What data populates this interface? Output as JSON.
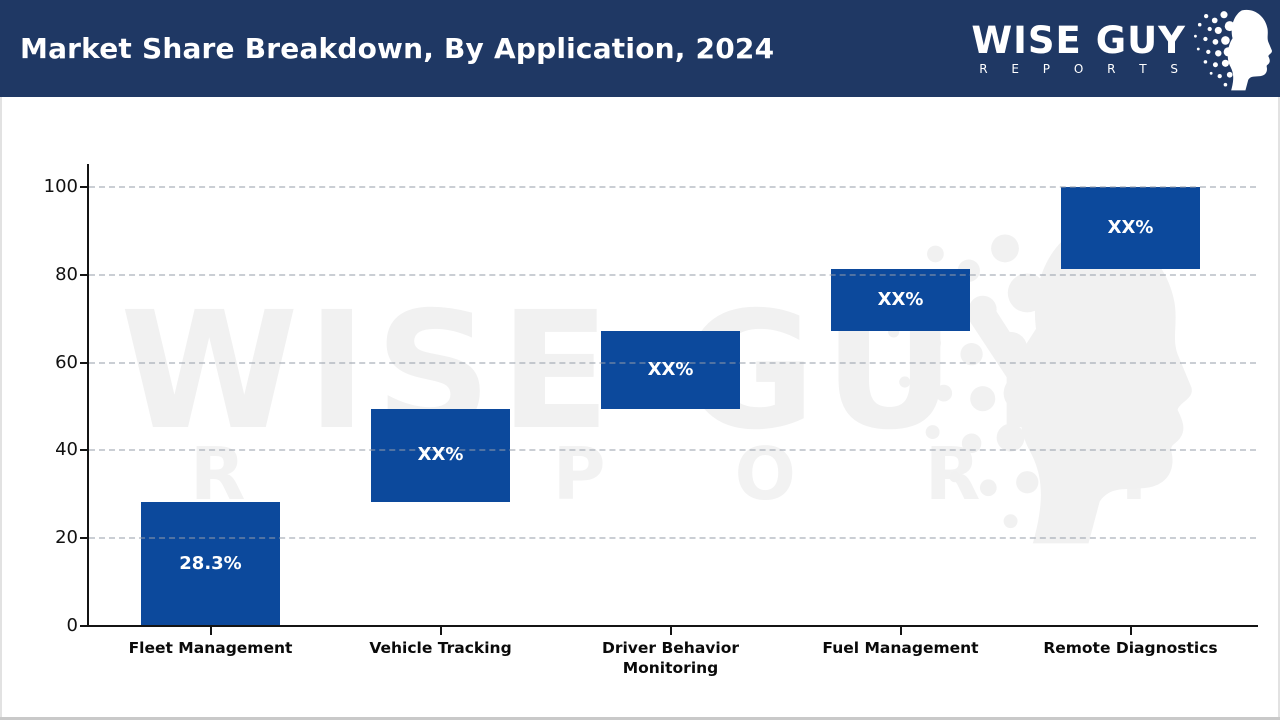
{
  "header": {
    "title": "Market Share Breakdown, By Application, 2024",
    "logo": {
      "line1": "WISE GUY",
      "line2": "R E P O R T S"
    }
  },
  "watermark": {
    "line1": "WISE GUY",
    "line2": "R E P O R T S"
  },
  "colors": {
    "header_bg": "#1f3864",
    "bar": "#0c499c",
    "grid": "#d8d8d8",
    "axis": "#141414",
    "bar_label": "#ffffff",
    "watermark": "#f1f1f1"
  },
  "chart_data": {
    "type": "bar",
    "subtype": "waterfall",
    "title": "Market Share Breakdown, By Application, 2024",
    "categories": [
      "Fleet Management",
      "Vehicle Tracking",
      "Driver Behavior Monitoring",
      "Fuel Management",
      "Remote Diagnostics"
    ],
    "series": [
      {
        "name": "Market Share (%)",
        "starts": [
          0,
          28.3,
          49.5,
          67.2,
          81.3
        ],
        "ends": [
          28.3,
          49.5,
          67.2,
          81.3,
          100
        ],
        "values": [
          28.3,
          21.2,
          17.7,
          14.1,
          18.7
        ]
      }
    ],
    "bar_labels": [
      "28.3%",
      "XX%",
      "XX%",
      "XX%",
      "XX%"
    ],
    "yticks": [
      0,
      20,
      40,
      60,
      80,
      100
    ],
    "ylim": [
      0,
      105
    ],
    "xlabel": "",
    "ylabel": "",
    "grid": "dashed-horizontal",
    "legend": "none"
  }
}
